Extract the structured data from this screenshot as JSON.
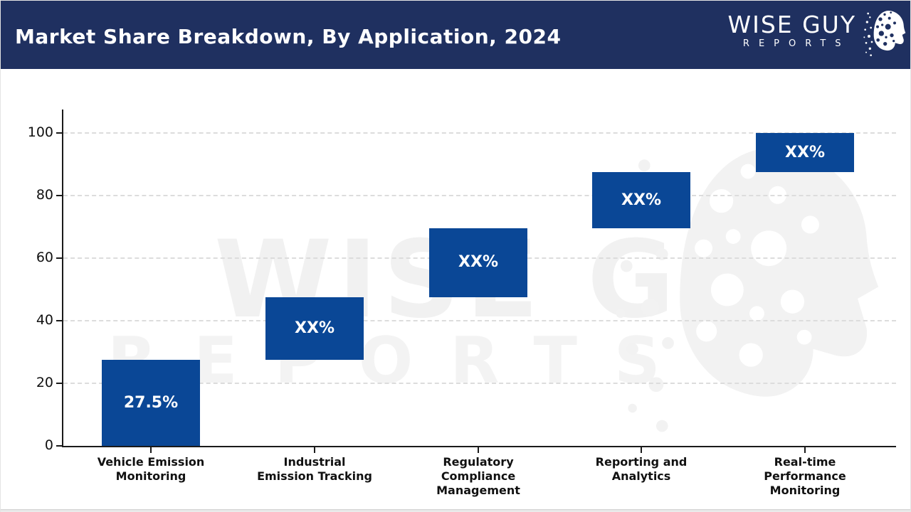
{
  "header": {
    "title": "Market Share Breakdown, By Application, 2024",
    "logo_line1": "WISE GUY",
    "logo_line2": "REPORTS"
  },
  "watermark": {
    "line1": "WISE GUY",
    "line2": "REPORTS"
  },
  "chart_data": {
    "type": "bar",
    "subtype": "floating-waterfall",
    "title": "Market Share Breakdown, By Application, 2024",
    "xlabel": "",
    "ylabel": "",
    "ylim": [
      0,
      100
    ],
    "yticks": [
      0,
      20,
      40,
      60,
      80,
      100
    ],
    "grid": "horizontal-dashed",
    "legend": "none",
    "bar_color": "#0a4796",
    "bar_label_color": "#ffffff",
    "categories": [
      "Vehicle Emission Monitoring",
      "Industrial Emission Tracking",
      "Regulatory Compliance Management",
      "Reporting and Analytics",
      "Real-time Performance Monitoring"
    ],
    "bars": [
      {
        "category": "Vehicle Emission Monitoring",
        "lines": [
          "Vehicle Emission",
          "Monitoring"
        ],
        "from": 0,
        "to": 27.5,
        "span": 27.5,
        "label": "27.5%"
      },
      {
        "category": "Industrial Emission Tracking",
        "lines": [
          "Industrial",
          "Emission Tracking"
        ],
        "from": 27.5,
        "to": 47.5,
        "span": 20,
        "label": "XX%"
      },
      {
        "category": "Regulatory Compliance Management",
        "lines": [
          "Regulatory",
          "Compliance",
          "Management"
        ],
        "from": 47.5,
        "to": 69.5,
        "span": 22,
        "label": "XX%"
      },
      {
        "category": "Reporting and Analytics",
        "lines": [
          "Reporting and",
          "Analytics"
        ],
        "from": 69.5,
        "to": 87.5,
        "span": 18,
        "label": "XX%"
      },
      {
        "category": "Real-time Performance Monitoring",
        "lines": [
          "Real-time",
          "Performance",
          "Monitoring"
        ],
        "from": 87.5,
        "to": 100,
        "span": 12.5,
        "label": "XX%"
      }
    ]
  },
  "colors": {
    "header_bg": "#1f3060",
    "bar": "#0a4796",
    "gridline": "#dcdcdc",
    "axis": "#1a1a1a",
    "watermark": "#f1f1f1"
  }
}
